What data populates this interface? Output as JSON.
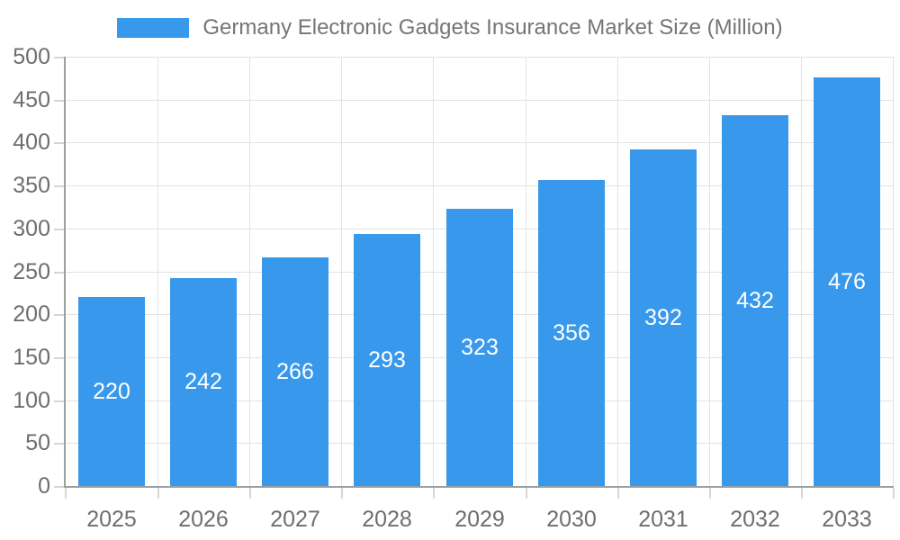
{
  "chart_data": {
    "type": "bar",
    "title": "Germany Electronic Gadgets Insurance Market Size (Million)",
    "categories": [
      "2025",
      "2026",
      "2027",
      "2028",
      "2029",
      "2030",
      "2031",
      "2032",
      "2033"
    ],
    "series": [
      {
        "name": "Germany Electronic Gadgets Insurance Market Size (Million)",
        "values": [
          220,
          242,
          266,
          293,
          323,
          356,
          392,
          432,
          476
        ]
      }
    ],
    "value_labels": [
      220,
      242,
      266,
      293,
      323,
      356,
      392,
      432,
      476
    ],
    "value_label_position": "inside-center",
    "xlabel": "",
    "ylabel": "",
    "ylim": [
      0,
      500
    ],
    "ytick_step": 50,
    "yticks": [
      0,
      50,
      100,
      150,
      200,
      250,
      300,
      350,
      400,
      450,
      500
    ],
    "grid": "on",
    "legend_position": "top-center"
  },
  "colors": {
    "bar": "#3898ec",
    "grid": "#e2e2e2",
    "axis": "#9e9e9e",
    "tick": "#d6d6d6",
    "tick_label": "#6e6e6e",
    "legend_text": "#757575",
    "value_label": "#ffffff",
    "background": "#ffffff"
  }
}
